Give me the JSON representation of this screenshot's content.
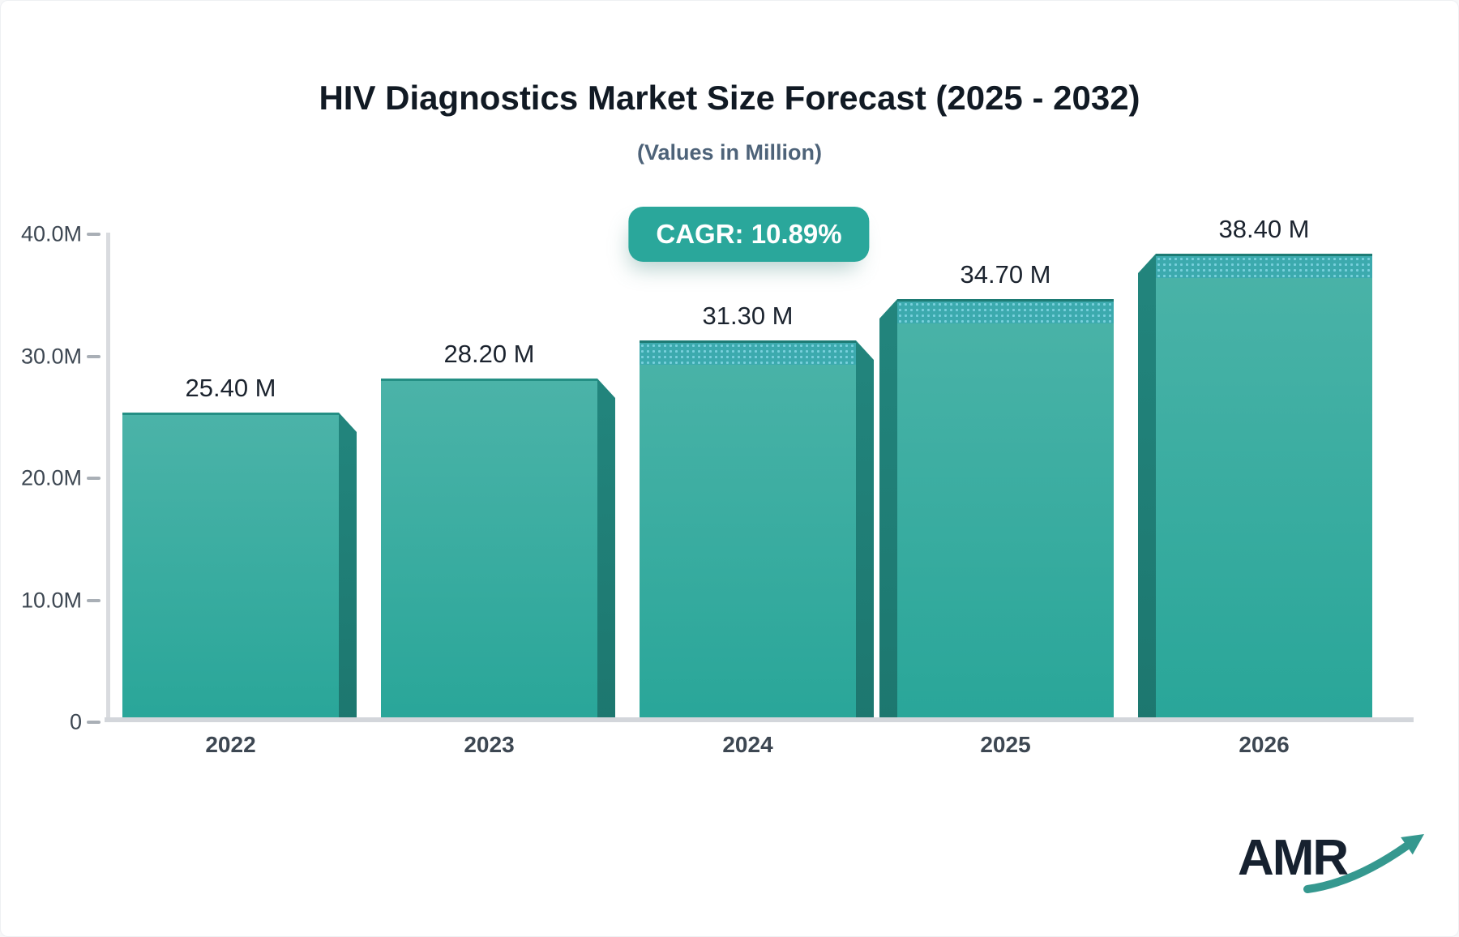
{
  "header": {
    "title": "HIV Diagnostics Market Size Forecast (2025 - 2032)",
    "subtitle": "(Values in Million)"
  },
  "badge": {
    "label": "CAGR: 10.89%"
  },
  "logo": {
    "text": "AMR",
    "icon": "growth-arrow-icon"
  },
  "colors": {
    "badge_bg": "#2aa79b",
    "bar_teal_top": "#4bb3a8",
    "bar_teal_bottom": "#29a699",
    "bar_side_dark": "#1f7e76",
    "bar_cap_bg": "#3caaae",
    "title_color": "#111a24",
    "subtitle_color": "#4e6379",
    "axis_label": "#3d4752",
    "axis_line": "#d9dbdf",
    "baseline": "#d3d6db",
    "value_label": "#1b232e",
    "logo_navy": "#16212f",
    "logo_teal": "#35988f"
  },
  "chart_data": {
    "type": "bar",
    "title": "HIV Diagnostics Market Size Forecast (2025 - 2032)",
    "subtitle": "(Values in Million)",
    "annotation": "CAGR: 10.89%",
    "categories": [
      "2022",
      "2023",
      "2024",
      "2025",
      "2026"
    ],
    "values": [
      25.4,
      28.2,
      31.3,
      34.7,
      38.4
    ],
    "value_labels": [
      "25.40 M",
      "28.20 M",
      "31.30 M",
      "34.70 M",
      "38.40 M"
    ],
    "unit": "Million",
    "xlabel": "",
    "ylabel": "",
    "ylim": [
      0,
      40
    ],
    "y_ticks": [
      {
        "value": 40,
        "label": "40.0M"
      },
      {
        "value": 30,
        "label": "30.0M"
      },
      {
        "value": 20,
        "label": "20.0M"
      },
      {
        "value": 10,
        "label": "10.0M"
      },
      {
        "value": 0,
        "label": "0"
      }
    ],
    "grid": false,
    "legend": null
  }
}
